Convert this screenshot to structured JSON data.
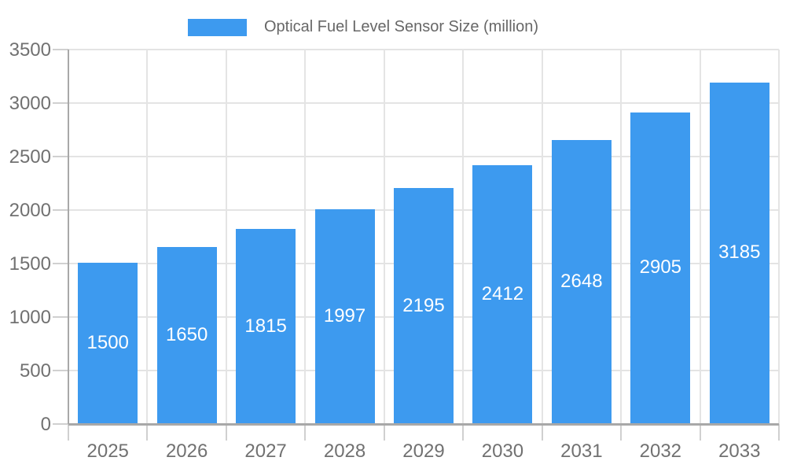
{
  "chart_data": {
    "type": "bar",
    "title": "Optical Fuel Level Sensor Size (million)",
    "legend": {
      "label": "Optical Fuel Level Sensor Size (million)",
      "position": "top-center"
    },
    "categories": [
      "2025",
      "2026",
      "2027",
      "2028",
      "2029",
      "2030",
      "2031",
      "2032",
      "2033"
    ],
    "series": [
      {
        "name": "Optical Fuel Level Sensor Size (million)",
        "values": [
          1500,
          1650,
          1815,
          1997,
          2195,
          2412,
          2648,
          2905,
          3185
        ],
        "color": "#3D9AEF"
      }
    ],
    "value_labels": {
      "visible": true,
      "position": "inside-center",
      "color": "#FFFFFF"
    },
    "xlabel": "",
    "ylabel": "",
    "ylim": [
      0,
      3500
    ],
    "yticks": [
      0,
      500,
      1000,
      1500,
      2000,
      2500,
      3000,
      3500
    ],
    "grid": {
      "horizontal": true,
      "vertical": true,
      "color": "#E4E4E4"
    },
    "colors": {
      "bar": "#3D9AEF",
      "axis_line": "#A8A8A8",
      "tick": "#D0D0D0",
      "axis_label": "#717171",
      "legend_text": "#676767",
      "background": "#FFFFFF"
    }
  }
}
